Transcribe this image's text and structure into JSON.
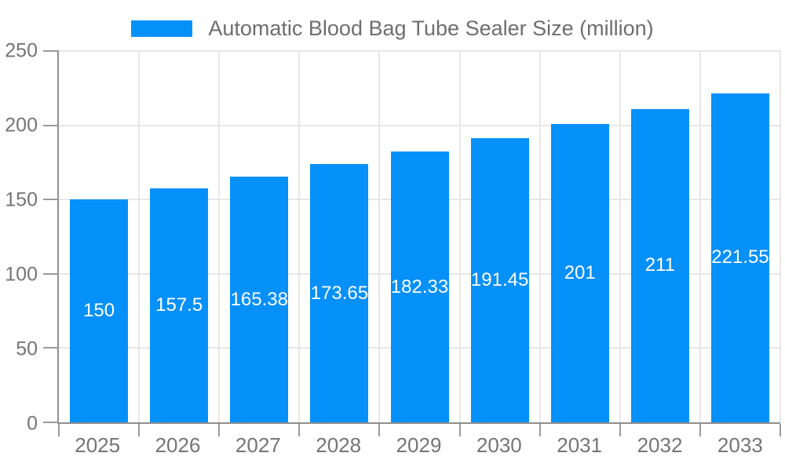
{
  "chart_data": {
    "type": "bar",
    "title": "Automatic Blood Bag Tube Sealer Size (million)",
    "categories": [
      "2025",
      "2026",
      "2027",
      "2028",
      "2029",
      "2030",
      "2031",
      "2032",
      "2033"
    ],
    "values": [
      150,
      157.5,
      165.38,
      173.65,
      182.33,
      191.45,
      201,
      211,
      221.55
    ],
    "value_labels": [
      "150",
      "157.5",
      "165.38",
      "173.65",
      "182.33",
      "191.45",
      "201",
      "211",
      "221.55"
    ],
    "xlabel": "",
    "ylabel": "",
    "ylim": [
      0,
      250
    ],
    "yticks": [
      0,
      50,
      100,
      150,
      200,
      250
    ],
    "grid": true,
    "legend_position": "top",
    "colors": {
      "bar": "#0690fa",
      "grid": "#e7e7e7",
      "axis": "#8f8f8f",
      "tick": "#9a9a9a",
      "axis_text": "#757575",
      "legend_text": "#6e6e6e",
      "value_text": "#ffffff",
      "background": "#ffffff"
    }
  }
}
